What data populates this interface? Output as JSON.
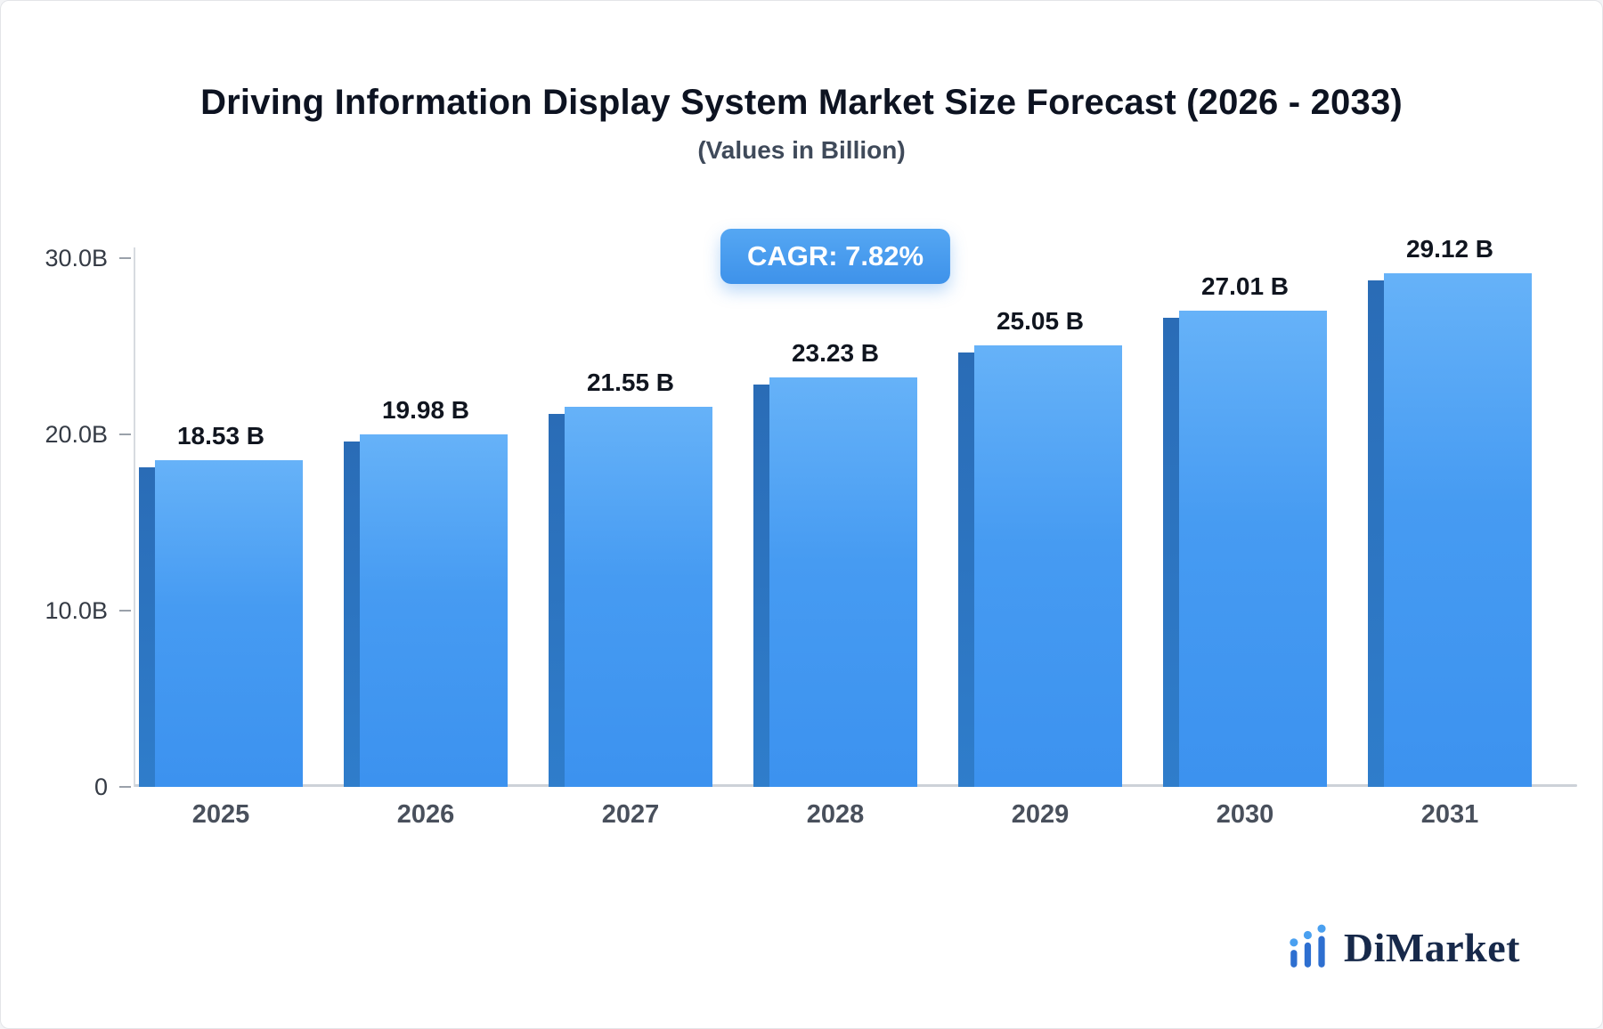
{
  "header": {
    "title": "Driving Information Display System Market Size Forecast (2026 - 2033)",
    "subtitle": "(Values in Billion)"
  },
  "badge": {
    "label": "CAGR: 7.82%"
  },
  "chart_data": {
    "type": "bar",
    "title": "Driving Information Display System Market Size Forecast (2026 - 2033)",
    "subtitle": "(Values in Billion)",
    "annotation": "CAGR: 7.82%",
    "categories": [
      "2025",
      "2026",
      "2027",
      "2028",
      "2029",
      "2030",
      "2031"
    ],
    "values": [
      18.53,
      19.98,
      21.55,
      23.23,
      25.05,
      27.01,
      29.12
    ],
    "value_labels": [
      "18.53 B",
      "19.98 B",
      "21.55 B",
      "23.23 B",
      "25.05 B",
      "27.01 B",
      "29.12 B"
    ],
    "unit": "Billion",
    "ylim": [
      0,
      30
    ],
    "yticks": [
      {
        "value": 0,
        "label": "0"
      },
      {
        "value": 10,
        "label": "10.0B"
      },
      {
        "value": 20,
        "label": "20.0B"
      },
      {
        "value": 30,
        "label": "30.0B"
      }
    ],
    "grid": false,
    "legend": "none",
    "colors": {
      "bar_face_top": "#66b2f8",
      "bar_face_bottom": "#3c92ef",
      "bar_side": "#2d74c0",
      "badge_background": "#4298ec",
      "axis_line": "#cdd2d8"
    }
  },
  "logo": {
    "text": "DiMarket",
    "icon": "bar-chart-logo-icon",
    "text_color": "#17294a",
    "icon_bar_color": "#2e6fd0",
    "icon_dot_color": "#4aa0f0"
  }
}
